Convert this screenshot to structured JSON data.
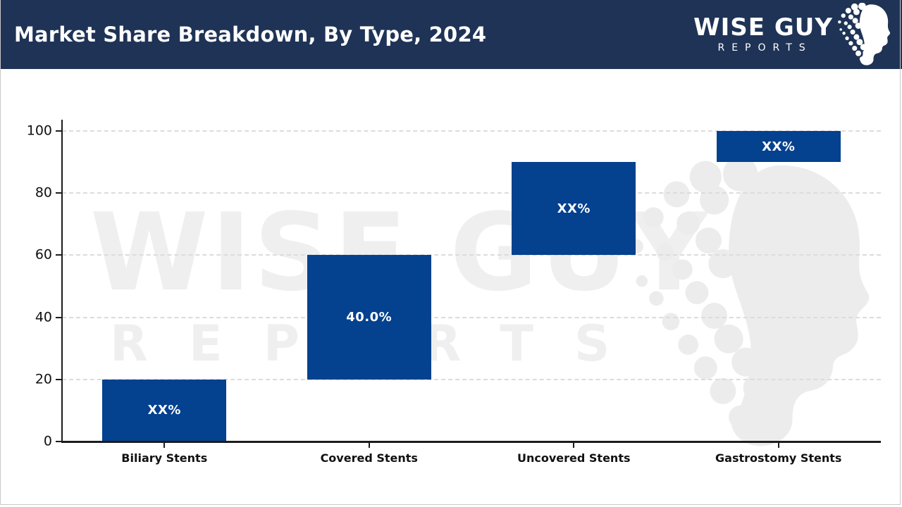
{
  "header": {
    "title": "Market Share Breakdown, By Type, 2024",
    "logo": {
      "line1": "WISE GUY",
      "line2": "REPORTS"
    }
  },
  "watermark": {
    "line1": "WISE GUY",
    "line2": "REPORTS"
  },
  "colors": {
    "header_bg": "#1e3356",
    "bar": "#04418f",
    "grid": "#dcdcdc",
    "axis": "#1c1c1c",
    "watermark": "#efefef",
    "bar_label_text": "#ffffff"
  },
  "chart_data": {
    "type": "bar",
    "subtype": "floating-segment-waterfall",
    "title": "Market Share Breakdown, By Type, 2024",
    "categories": [
      "Biliary Stents",
      "Covered Stents",
      "Uncovered Stents",
      "Gastrostomy Stents"
    ],
    "series": [
      {
        "name": "Market Share (%)",
        "segments": [
          {
            "category": "Biliary Stents",
            "start": 0,
            "end": 20,
            "label": "XX%"
          },
          {
            "category": "Covered Stents",
            "start": 20,
            "end": 60,
            "label": "40.0%"
          },
          {
            "category": "Uncovered Stents",
            "start": 60,
            "end": 90,
            "label": "XX%"
          },
          {
            "category": "Gastrostomy Stents",
            "start": 90,
            "end": 100,
            "label": "XX%"
          }
        ]
      }
    ],
    "xlabel": "",
    "ylabel": "",
    "ylim": [
      0,
      100
    ],
    "yticks": [
      0,
      20,
      40,
      60,
      80,
      100
    ],
    "grid": "horizontal-dashed",
    "legend": "none"
  }
}
